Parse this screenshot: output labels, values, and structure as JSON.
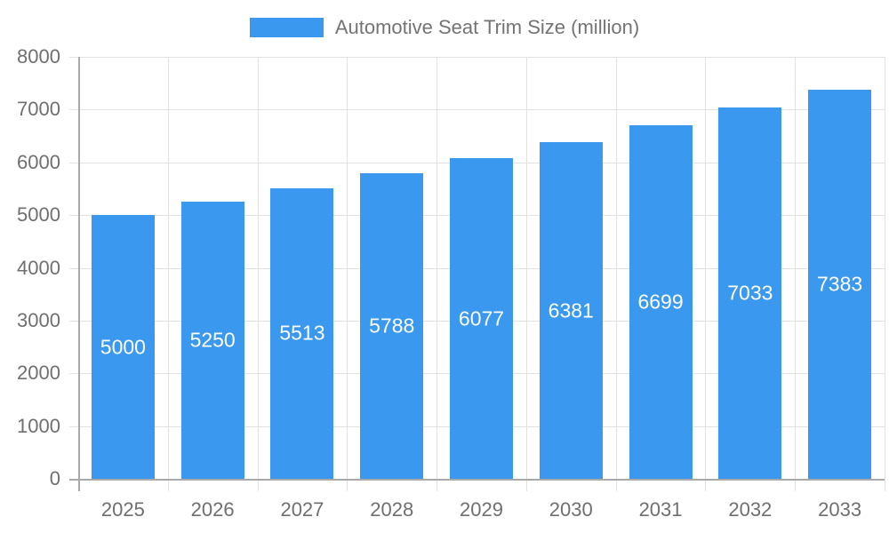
{
  "chart_data": {
    "type": "bar",
    "title": "Automotive Seat Trim Size (million)",
    "categories": [
      "2025",
      "2026",
      "2027",
      "2028",
      "2029",
      "2030",
      "2031",
      "2032",
      "2033"
    ],
    "values": [
      5000,
      5250,
      5513,
      5788,
      6077,
      6381,
      6699,
      7033,
      7383
    ],
    "series_name": "Automotive Seat Trim Size (million)",
    "xlabel": "",
    "ylabel": "",
    "ylim": [
      0,
      8000
    ],
    "ytick_step": 1000,
    "ytick_labels": [
      "0",
      "1000",
      "2000",
      "3000",
      "4000",
      "5000",
      "6000",
      "7000",
      "8000"
    ],
    "grid": true,
    "legend_position": "top-center",
    "bar_color": "#3a99ee",
    "bar_value_label_color": "#ffffff",
    "axis_text_color": "#6f6f6f",
    "grid_color": "#e2e2e2",
    "axis_line_color": "#a9a9a9"
  }
}
